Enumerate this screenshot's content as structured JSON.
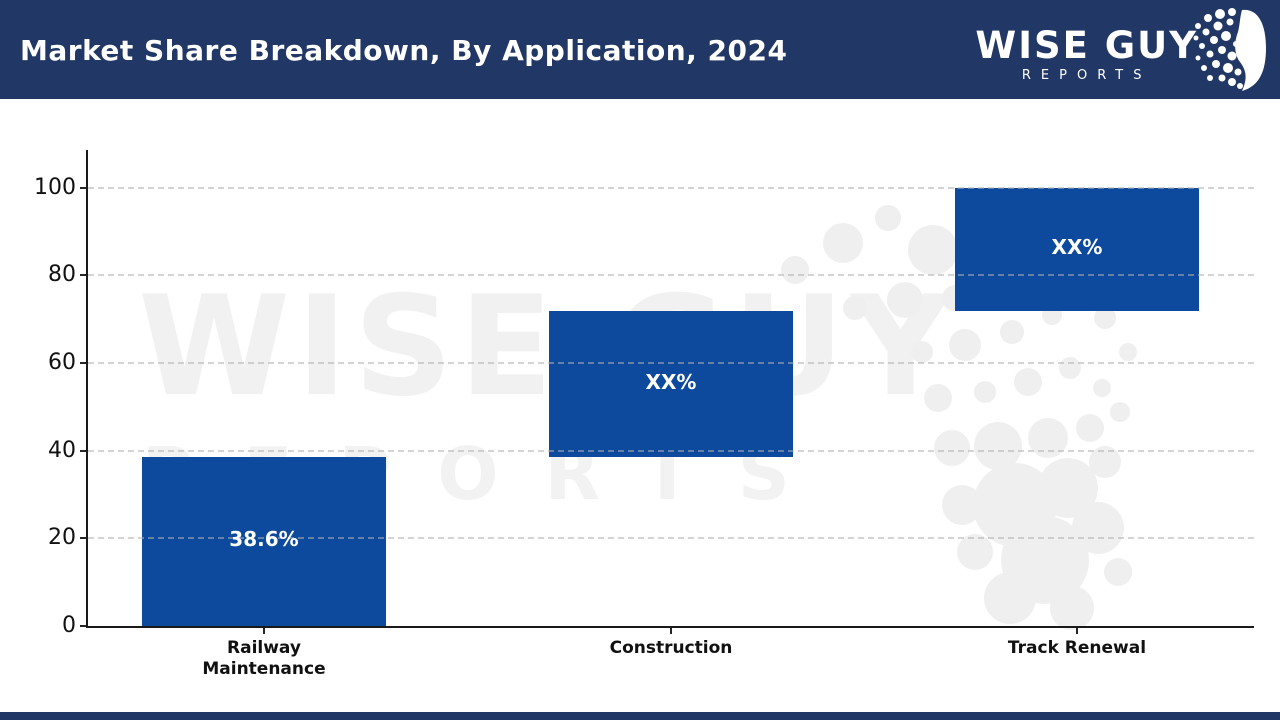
{
  "header": {
    "title": "Market Share Breakdown, By Application, 2024",
    "bg_color": "#213765",
    "logo": {
      "line1": "WISE GUY",
      "line2": "REPORTS"
    }
  },
  "watermark": {
    "line1": "WISE GUY",
    "line2": "REPORTS"
  },
  "chart_data": {
    "type": "bar",
    "subtype": "waterfall-cumulative",
    "title": "",
    "xlabel": "",
    "ylabel": "",
    "categories": [
      "Railway\nMaintenance",
      "Construction",
      "Track Renewal"
    ],
    "segments": [
      {
        "category": "Railway Maintenance",
        "start": 0,
        "end": 38.6,
        "label": "38.6%"
      },
      {
        "category": "Construction",
        "start": 38.6,
        "end": 71.8,
        "label": "XX%"
      },
      {
        "category": "Track Renewal",
        "start": 71.8,
        "end": 100,
        "label": "XX%"
      }
    ],
    "yticks": [
      0,
      20,
      40,
      60,
      80,
      100
    ],
    "ylim": [
      0,
      100
    ],
    "grid": "dashed-horizontal",
    "legend": "none",
    "bar_color": "#0d4a9e",
    "bar_label_color": "#ffffff",
    "axis_color": "#1a1a1a"
  },
  "footer": {
    "bar_color": "#213765"
  }
}
